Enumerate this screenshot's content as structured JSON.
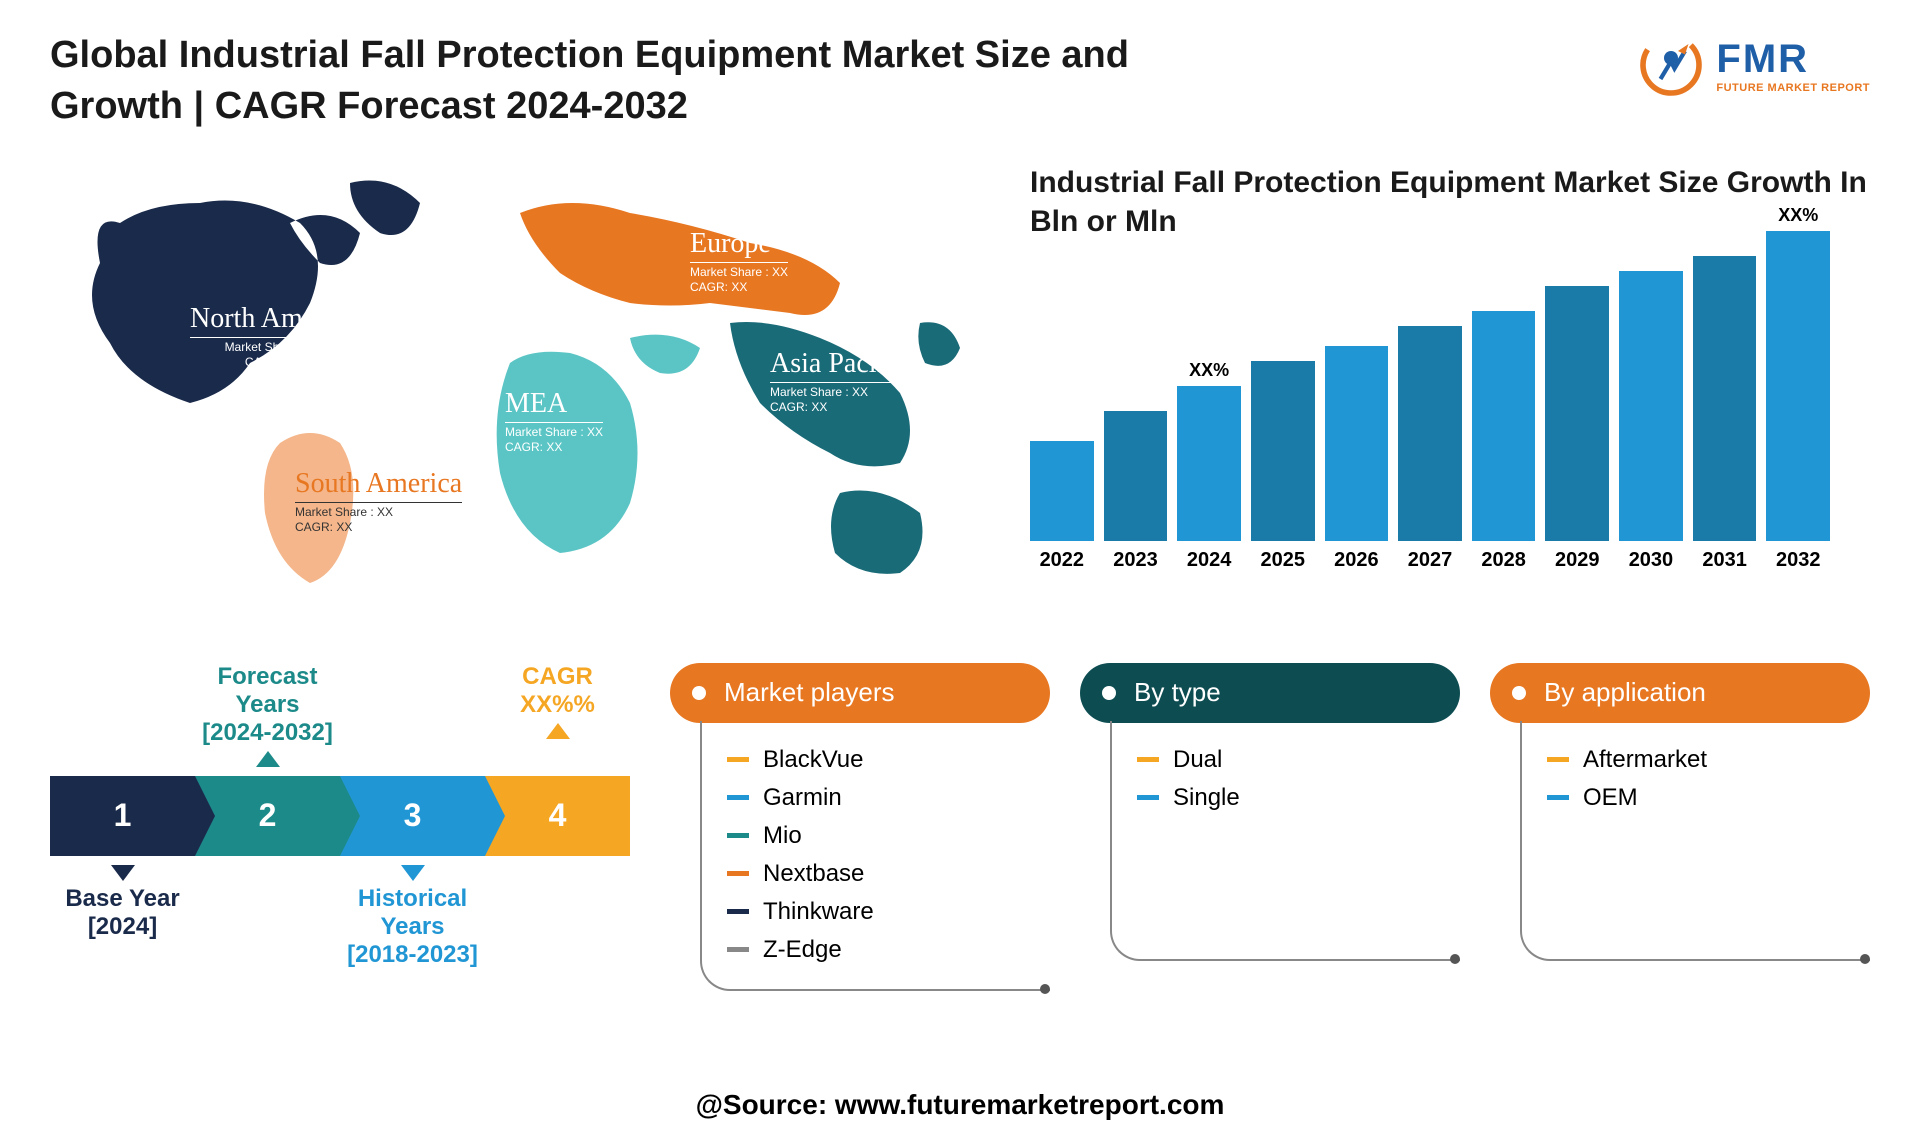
{
  "title": "Global Industrial Fall Protection Equipment Market Size and Growth | CAGR Forecast 2024-2032",
  "logo": {
    "fmr": "FMR",
    "sub": "FUTURE MARKET REPORT"
  },
  "colors": {
    "navy": "#1a2a4a",
    "teal": "#1d8a8a",
    "cyan": "#3bb6b6",
    "orange": "#e87722",
    "peach": "#f4b68a",
    "blue": "#2196d4",
    "gold": "#f5a623",
    "dark_teal": "#0d4d52",
    "bar_a": "#2196d4",
    "bar_b": "#1a7aa8"
  },
  "map": {
    "regions": [
      {
        "name": "North America",
        "share": "Market Share : XX",
        "cagr": "CAGR: XX"
      },
      {
        "name": "South America",
        "share": "Market Share : XX",
        "cagr": "CAGR: XX"
      },
      {
        "name": "Europe",
        "share": "Market Share : XX",
        "cagr": "CAGR: XX"
      },
      {
        "name": "MEA",
        "share": "Market Share : XX",
        "cagr": "CAGR: XX"
      },
      {
        "name": "Asia Pacific",
        "share": "Market Share : XX",
        "cagr": "CAGR: XX"
      }
    ]
  },
  "chart": {
    "title": "Industrial Fall Protection Equipment Market Size Growth In\nBln or Mln",
    "years": [
      "2022",
      "2023",
      "2024",
      "2025",
      "2026",
      "2027",
      "2028",
      "2029",
      "2030",
      "2031",
      "2032"
    ],
    "heights": [
      100,
      130,
      155,
      180,
      195,
      215,
      230,
      255,
      270,
      285,
      310
    ],
    "labels": {
      "2": "XX%",
      "10": "XX%"
    },
    "bar_color_a": "#2196d4",
    "bar_color_b": "#1a7aa8"
  },
  "timeline": {
    "top": [
      {
        "title": "Forecast Years",
        "sub": "[2024-2032]",
        "color": "#1d8a8a"
      },
      {
        "title": "CAGR",
        "sub": "XX%%",
        "color": "#f5a623"
      }
    ],
    "segments": [
      {
        "num": "1",
        "color": "#1a2a4a"
      },
      {
        "num": "2",
        "color": "#1d8a8a"
      },
      {
        "num": "3",
        "color": "#2196d4"
      },
      {
        "num": "4",
        "color": "#f5a623"
      }
    ],
    "bottom": [
      {
        "title": "Base Year",
        "sub": "[2024]",
        "color": "#1a2a4a"
      },
      {
        "title": "Historical Years",
        "sub": "[2018-2023]",
        "color": "#2196d4"
      }
    ]
  },
  "categories": [
    {
      "label": "Market players",
      "pill_color": "#e87722",
      "items": [
        {
          "text": "BlackVue",
          "color": "#f5a623"
        },
        {
          "text": "Garmin",
          "color": "#2196d4"
        },
        {
          "text": "Mio",
          "color": "#1d8a8a"
        },
        {
          "text": "Nextbase",
          "color": "#e87722"
        },
        {
          "text": "Thinkware",
          "color": "#1a2a4a"
        },
        {
          "text": "Z-Edge",
          "color": "#888888"
        }
      ]
    },
    {
      "label": "By type",
      "pill_color": "#0d4d52",
      "items": [
        {
          "text": "Dual",
          "color": "#f5a623"
        },
        {
          "text": "Single",
          "color": "#2196d4"
        }
      ]
    },
    {
      "label": "By application",
      "pill_color": "#e87722",
      "items": [
        {
          "text": "Aftermarket",
          "color": "#f5a623"
        },
        {
          "text": "OEM",
          "color": "#2196d4"
        }
      ]
    }
  ],
  "source": "@Source: www.futuremarketreport.com"
}
